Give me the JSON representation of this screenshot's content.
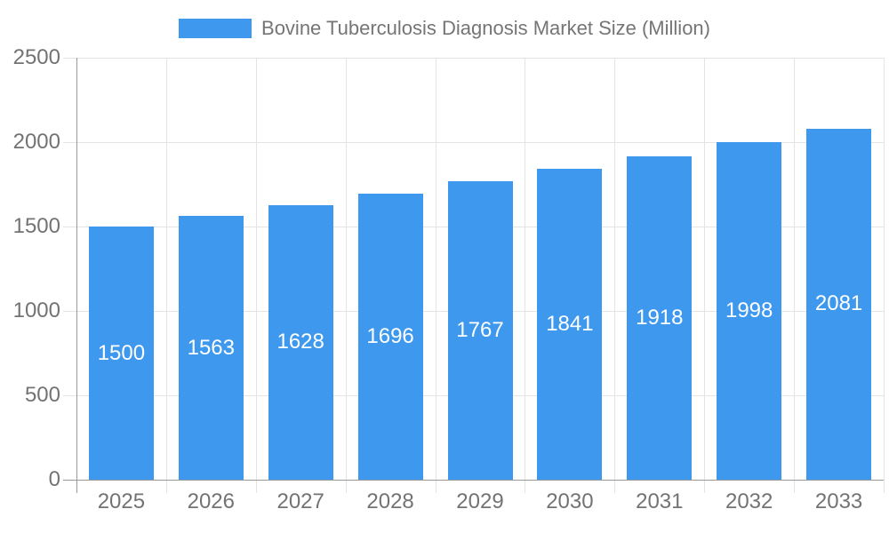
{
  "chart_data": {
    "type": "bar",
    "title": "Bovine Tuberculosis Diagnosis Market Size (Million)",
    "legend_position": "top",
    "categories": [
      "2025",
      "2026",
      "2027",
      "2028",
      "2029",
      "2030",
      "2031",
      "2032",
      "2033"
    ],
    "values": [
      1500,
      1563,
      1628,
      1696,
      1767,
      1841,
      1918,
      1998,
      2081
    ],
    "series": [
      {
        "name": "Bovine Tuberculosis Diagnosis Market Size (Million)",
        "values": [
          1500,
          1563,
          1628,
          1696,
          1767,
          1841,
          1918,
          1998,
          2081
        ]
      }
    ],
    "xlabel": "",
    "ylabel": "",
    "ylim": [
      0,
      2500
    ],
    "yticks": [
      0,
      500,
      1000,
      1500,
      2000,
      2500
    ],
    "grid": true,
    "value_labels_inside_bars": true,
    "bar_color": "#3E99EE",
    "bar_label_color": "#FFFFFF",
    "axis_text_color": "#737373",
    "legend_text_color": "#757575",
    "gridline_color": "#E4E4E4",
    "axis_line_color": "#999999",
    "background_color": "#FFFFFF"
  }
}
